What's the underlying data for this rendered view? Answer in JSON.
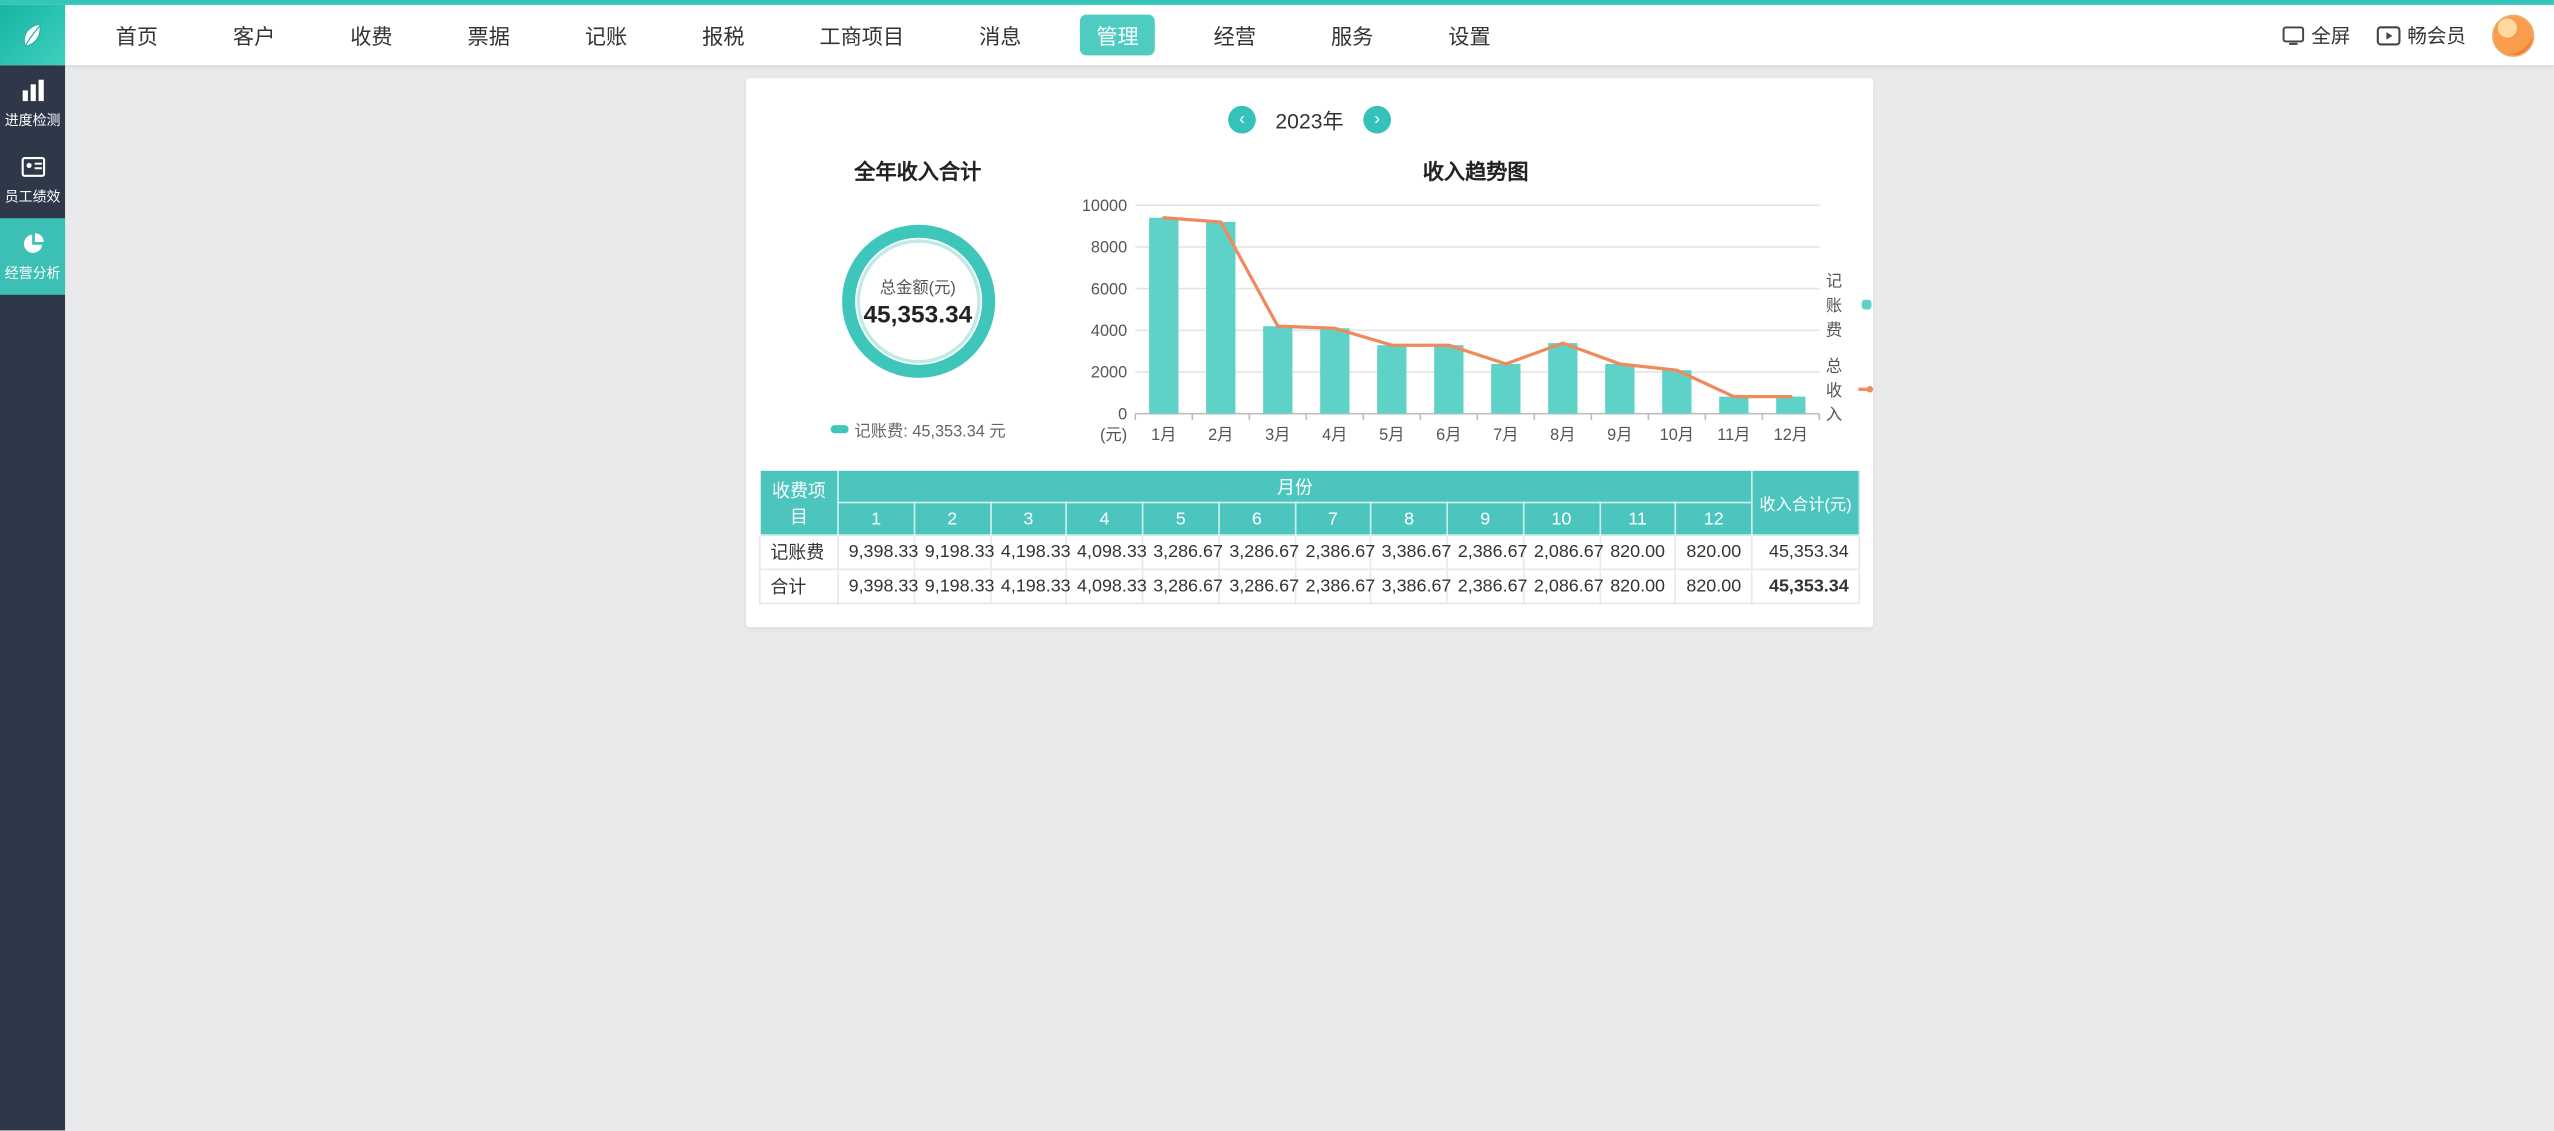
{
  "navbar": {
    "active": "管理",
    "menu": [
      {
        "key": "home",
        "label": "首页"
      },
      {
        "key": "customer",
        "label": "客户"
      },
      {
        "key": "charge",
        "label": "收费"
      },
      {
        "key": "invoice",
        "label": "票据"
      },
      {
        "key": "bookkeeping",
        "label": "记账"
      },
      {
        "key": "tax-report",
        "label": "报税"
      },
      {
        "key": "business-project",
        "label": "工商项目"
      },
      {
        "key": "message",
        "label": "消息"
      },
      {
        "key": "manage",
        "label": "管理"
      },
      {
        "key": "operate",
        "label": "经营"
      },
      {
        "key": "service",
        "label": "服务"
      },
      {
        "key": "settings",
        "label": "设置"
      }
    ],
    "fullscreen_label": "全屏",
    "member_label": "畅会员"
  },
  "sidebar": {
    "items": [
      {
        "key": "progress-check",
        "label": "进度检测",
        "icon": "bar-chart-icon",
        "active": false
      },
      {
        "key": "staff-performance",
        "label": "员工绩效",
        "icon": "badge-icon",
        "active": false
      },
      {
        "key": "business-analysis",
        "label": "经营分析",
        "icon": "pie-chart-icon",
        "active": true
      }
    ]
  },
  "panel": {
    "year": "2023年",
    "prev_arrow": "‹",
    "next_arrow": "›",
    "summary_title": "全年收入合计",
    "donut_label": "总金额(元)",
    "donut_value": "45,353.34",
    "donut_legend": "记账费: 45,353.34 元",
    "accent_color": "#3fc6ba"
  },
  "chart_data": {
    "type": "bar",
    "title": "收入趋势图",
    "categories": [
      "1月",
      "2月",
      "3月",
      "4月",
      "5月",
      "6月",
      "7月",
      "8月",
      "9月",
      "10月",
      "11月",
      "12月"
    ],
    "series": [
      {
        "name": "记账费",
        "type": "bar",
        "color": "#5fd2c7",
        "values": [
          9398.33,
          9198.33,
          4198.33,
          4098.33,
          3286.67,
          3286.67,
          2386.67,
          3386.67,
          2386.67,
          2086.67,
          820.0,
          820.0
        ]
      },
      {
        "name": "总收入",
        "type": "line",
        "color": "#ef8a5f",
        "values": [
          9398.33,
          9198.33,
          4198.33,
          4098.33,
          3286.67,
          3286.67,
          2386.67,
          3386.67,
          2386.67,
          2086.67,
          820.0,
          820.0
        ]
      }
    ],
    "ylabel": "(元)",
    "ylim": [
      0,
      10000
    ],
    "yticks": [
      0,
      2000,
      4000,
      6000,
      8000,
      10000
    ],
    "grid": true,
    "legend_position": "right"
  },
  "table": {
    "corner_header": "收费项目",
    "month_group_header": "月份",
    "total_header": "收入合计(元)",
    "month_headers": [
      "1",
      "2",
      "3",
      "4",
      "5",
      "6",
      "7",
      "8",
      "9",
      "10",
      "11",
      "12"
    ],
    "rows": [
      {
        "label": "记账费",
        "bold_total": false,
        "total": "45,353.34",
        "values": [
          "9,398.33",
          "9,198.33",
          "4,198.33",
          "4,098.33",
          "3,286.67",
          "3,286.67",
          "2,386.67",
          "3,386.67",
          "2,386.67",
          "2,086.67",
          "820.00",
          "820.00"
        ]
      },
      {
        "label": "合计",
        "bold_total": true,
        "total": "45,353.34",
        "values": [
          "9,398.33",
          "9,198.33",
          "4,198.33",
          "4,098.33",
          "3,286.67",
          "3,286.67",
          "2,386.67",
          "3,386.67",
          "2,386.67",
          "2,086.67",
          "820.00",
          "820.00"
        ]
      }
    ]
  }
}
